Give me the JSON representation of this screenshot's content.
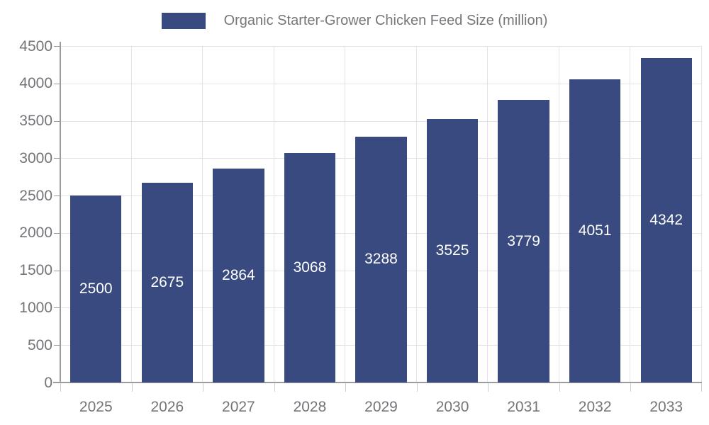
{
  "chart_data": {
    "type": "bar",
    "title": "Organic Starter-Grower Chicken Feed Size (million)",
    "legend": [
      "Organic Starter-Grower Chicken Feed Size (million)"
    ],
    "legend_position": "top-center",
    "categories": [
      "2025",
      "2026",
      "2027",
      "2028",
      "2029",
      "2030",
      "2031",
      "2032",
      "2033"
    ],
    "series": [
      {
        "name": "Organic Starter-Grower Chicken Feed Size (million)",
        "values": [
          2500,
          2675,
          2864,
          3068,
          3288,
          3525,
          3779,
          4051,
          4342
        ]
      }
    ],
    "bar_value_labels": [
      "2500",
      "2675",
      "2864",
      "3068",
      "3288",
      "3525",
      "3779",
      "4051",
      "4342"
    ],
    "xlabel": "",
    "ylabel": "",
    "ylim": [
      0,
      4500
    ],
    "ytick_step": 500,
    "ytick_labels": [
      "0",
      "500",
      "1000",
      "1500",
      "2000",
      "2500",
      "3000",
      "3500",
      "4000",
      "4500"
    ],
    "grid": true,
    "colors": {
      "bar": "#394A80",
      "bar_label_text": "#FFFFFF",
      "axis_text": "#74747A",
      "legend_text": "#76767B",
      "grid_line": "#E2E2E8",
      "axis_line": "#9C9CA0",
      "x_tick": "#C9CCD6"
    }
  }
}
